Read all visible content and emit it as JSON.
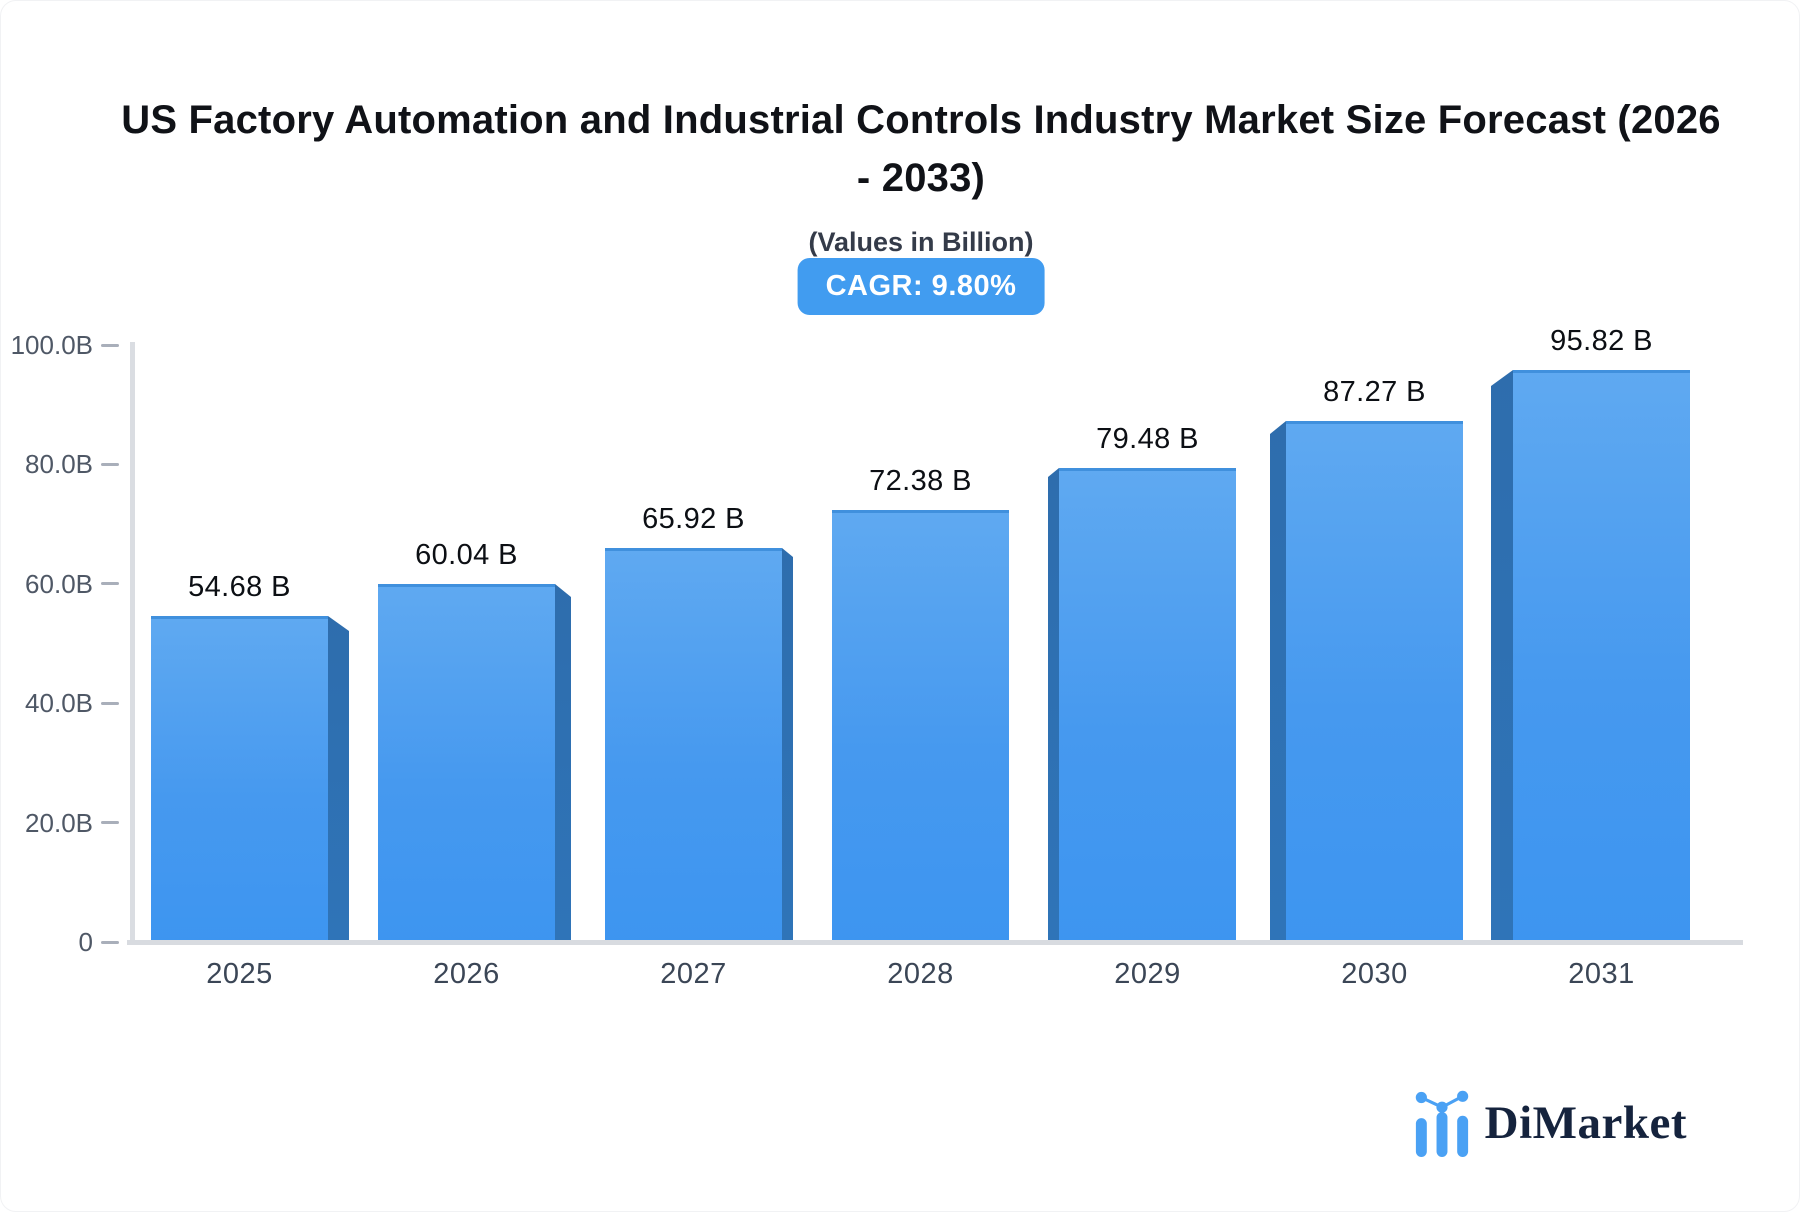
{
  "header": {
    "title_line1": "US Factory Automation and Industrial Controls Industry Market Size Forecast (2026",
    "title_line2": "- 2033)",
    "subtitle": "(Values in Billion)",
    "cagr_badge": "CAGR: 9.80%"
  },
  "axis": {
    "y_tick_labels": [
      "100.0B",
      "80.0B",
      "60.0B",
      "40.0B",
      "20.0B",
      "0"
    ]
  },
  "chart_data": {
    "type": "bar",
    "title": "US Factory Automation and Industrial Controls Industry Market Size Forecast (2026 - 2033)",
    "subtitle": "(Values in Billion)",
    "annotation": "CAGR: 9.80%",
    "categories": [
      "2025",
      "2026",
      "2027",
      "2028",
      "2029",
      "2030",
      "2031"
    ],
    "values": [
      54.68,
      60.04,
      65.92,
      72.38,
      79.48,
      87.27,
      95.82
    ],
    "value_labels": [
      "54.68 B",
      "60.04 B",
      "65.92 B",
      "72.38 B",
      "79.48 B",
      "87.27 B",
      "95.82 B"
    ],
    "xlabel": "",
    "ylabel": "",
    "ylim": [
      0,
      100
    ],
    "ytick_values": [
      0,
      20,
      40,
      60,
      80,
      100
    ],
    "grid": false,
    "legend": false,
    "style": "3d-perspective-bars"
  },
  "colors": {
    "accent_blue": "#419cf0",
    "bar_front_top": "#5fa9f1",
    "bar_front_bottom": "#3d95f0",
    "bar_side": "#2e6fb2",
    "axis_line": "#d8dbe0",
    "logo_navy": "#15233d",
    "logo_icon_blue": "#4aa1f4"
  },
  "footer": {
    "brand": "DiMarket"
  }
}
